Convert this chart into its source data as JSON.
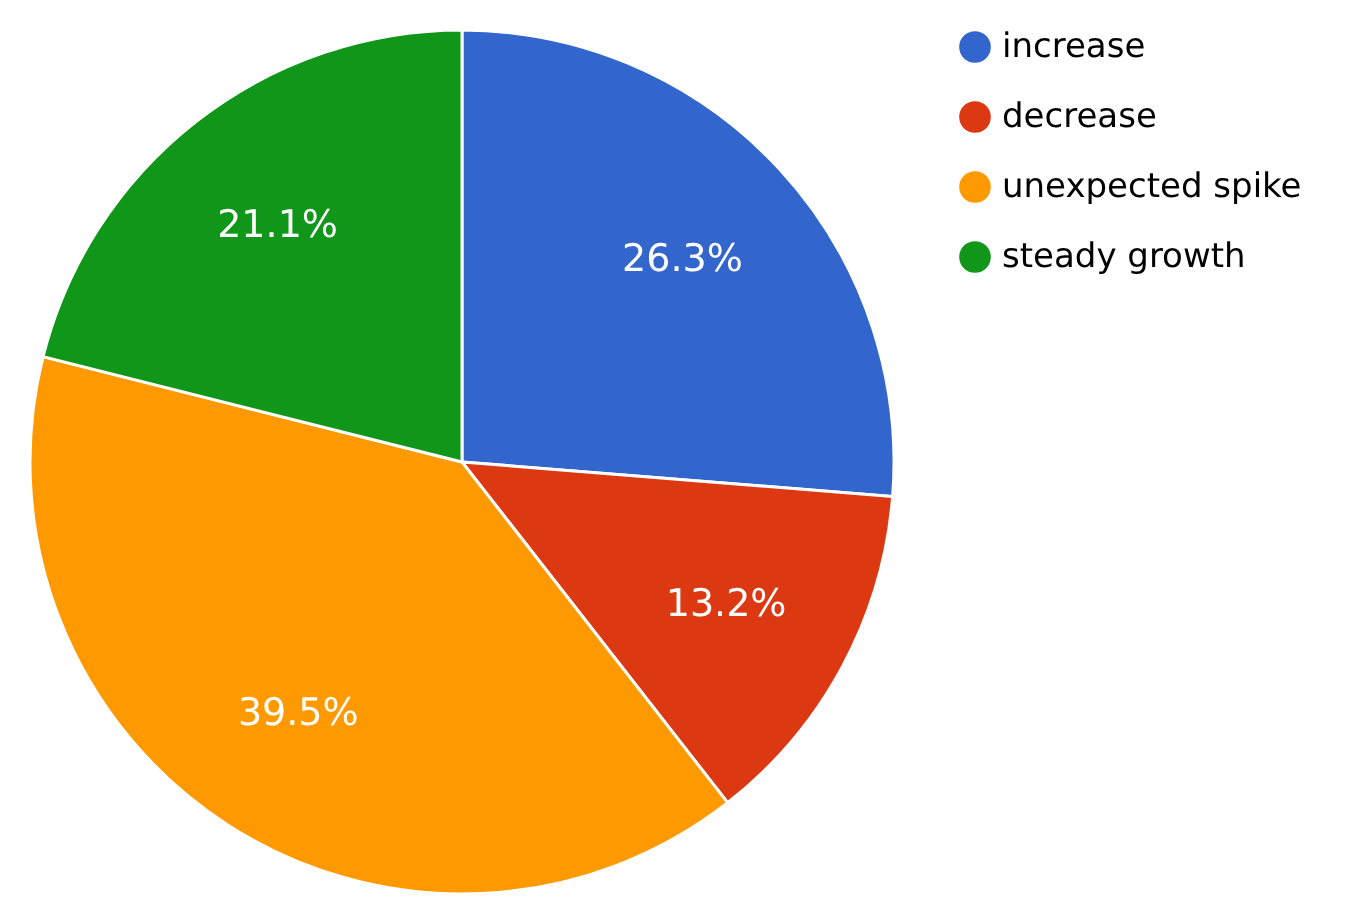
{
  "chart_data": {
    "type": "pie",
    "categories": [
      "increase",
      "decrease",
      "unexpected spike",
      "steady growth"
    ],
    "values": [
      26.3,
      13.2,
      39.5,
      21.1
    ],
    "colors": [
      "#3366cc",
      "#dc3912",
      "#ff9900",
      "#109618"
    ],
    "value_labels": [
      "26.3%",
      "13.2%",
      "39.5%",
      "21.1%"
    ],
    "legend": "top right"
  }
}
